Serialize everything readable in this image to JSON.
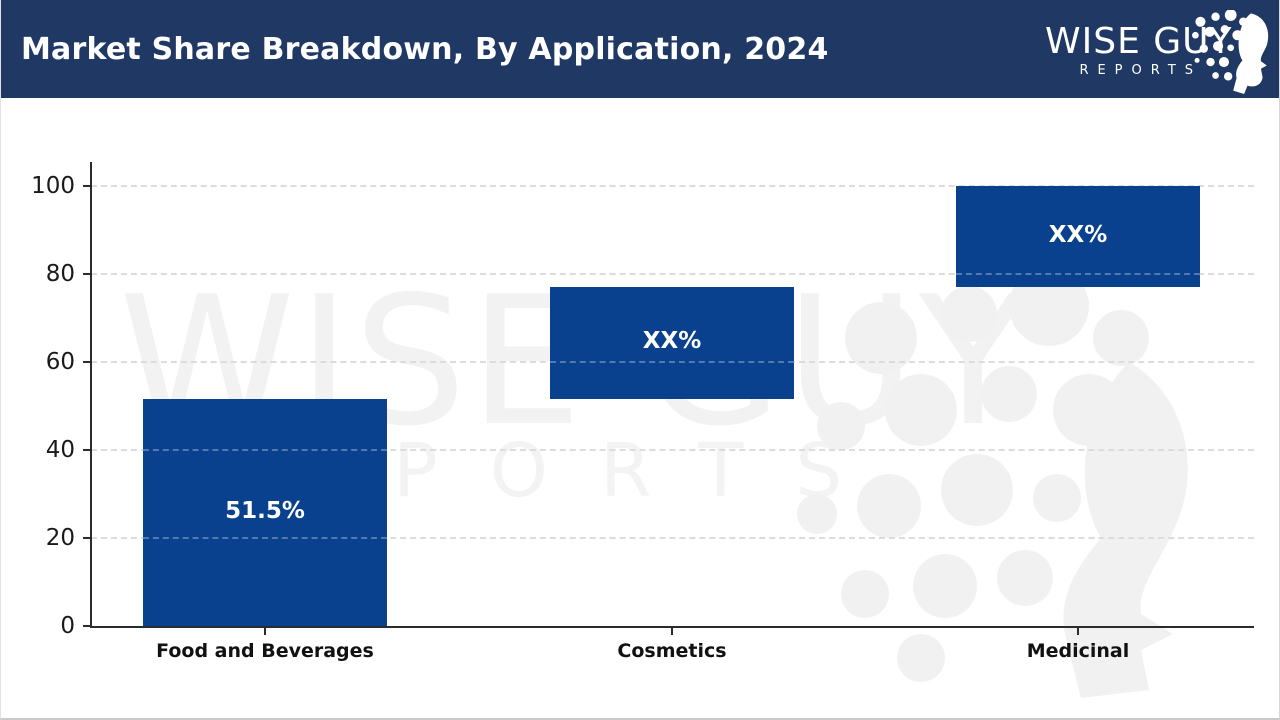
{
  "header": {
    "title": "Market Share Breakdown, By Application, 2024",
    "logo_line1": "WISE GUY",
    "logo_line2": "REPORTS"
  },
  "watermark": {
    "line1": "WISE GUY",
    "line2": "REPORTS"
  },
  "chart_data": {
    "type": "bar",
    "subtype": "stacked-waterfall",
    "title": "Market Share Breakdown, By Application, 2024",
    "categories": [
      "Food and Beverages",
      "Cosmetics",
      "Medicinal"
    ],
    "series": [
      {
        "name": "Market share (%)",
        "segments": [
          {
            "category": "Food and Beverages",
            "start": 0,
            "end": 51.5,
            "value": 51.5,
            "label": "51.5%"
          },
          {
            "category": "Cosmetics",
            "start": 51.5,
            "end": 77,
            "value": 25.5,
            "label": "XX%"
          },
          {
            "category": "Medicinal",
            "start": 77,
            "end": 100,
            "value": 23,
            "label": "XX%"
          }
        ]
      }
    ],
    "xlabel": "",
    "ylabel": "",
    "ylim": [
      0,
      100
    ],
    "yticks": [
      0,
      20,
      40,
      60,
      80,
      100
    ],
    "grid": {
      "horizontal": true,
      "style": "dashed"
    },
    "legend": "none"
  },
  "colors": {
    "header_bg": "#1f3864",
    "bar": "#09418f",
    "bar_label": "#ffffff",
    "grid": "#dcdcdc",
    "axis": "#2b2b2b",
    "watermark": "#f1f1f2"
  }
}
